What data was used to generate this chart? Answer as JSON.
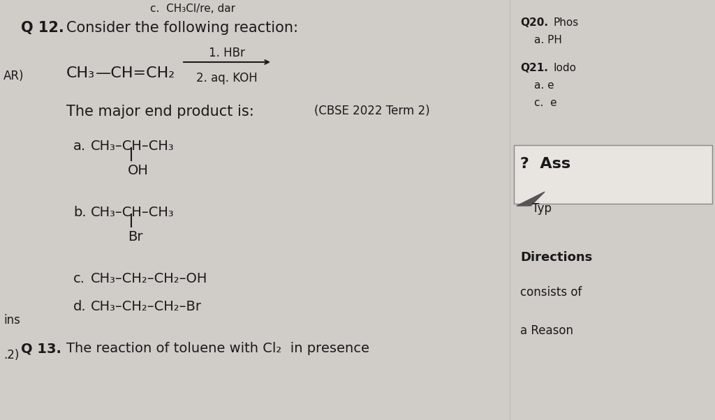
{
  "bg_color": "#d0ccc8",
  "text_color": "#1a1a1a",
  "title": "Q 12.  Consider the following reaction:",
  "reactant": "CH₃—CH=CH₂",
  "reagent_top": "1. HBr",
  "reagent_bottom": "2. aq. KOH",
  "question": "The major end product is:",
  "cbse_ref": "(CBSE 2022 Term 2)",
  "option_a_line1": "CH₃–CH–CH₃",
  "option_a_group": "OH",
  "option_b_line1": "CH₃–CH–CH₃",
  "option_b_group": "Br",
  "option_c": "CH₃–CH₂–CH₂–OH",
  "option_d": "CH₃–CH₂–CH₂–Br",
  "q13": "Q 13.  The reaction of toluene with Cl₂  in presence",
  "right_q20": "Q20.  Phos",
  "right_q20b": "a. PH",
  "right_q21": "Q21.  Iodo",
  "right_q21b": "a. e",
  "right_q21c": "c.  e",
  "right_ass": "?  Ass",
  "right_typ": "╲ Typ",
  "right_dir": "Directions",
  "right_con": "consists of",
  "right_rea": "a Reason",
  "left_ar": "AR)",
  "left_ins": "ins",
  "left_2": ".2)",
  "figsize": [
    10.24,
    6.02
  ],
  "dpi": 100
}
